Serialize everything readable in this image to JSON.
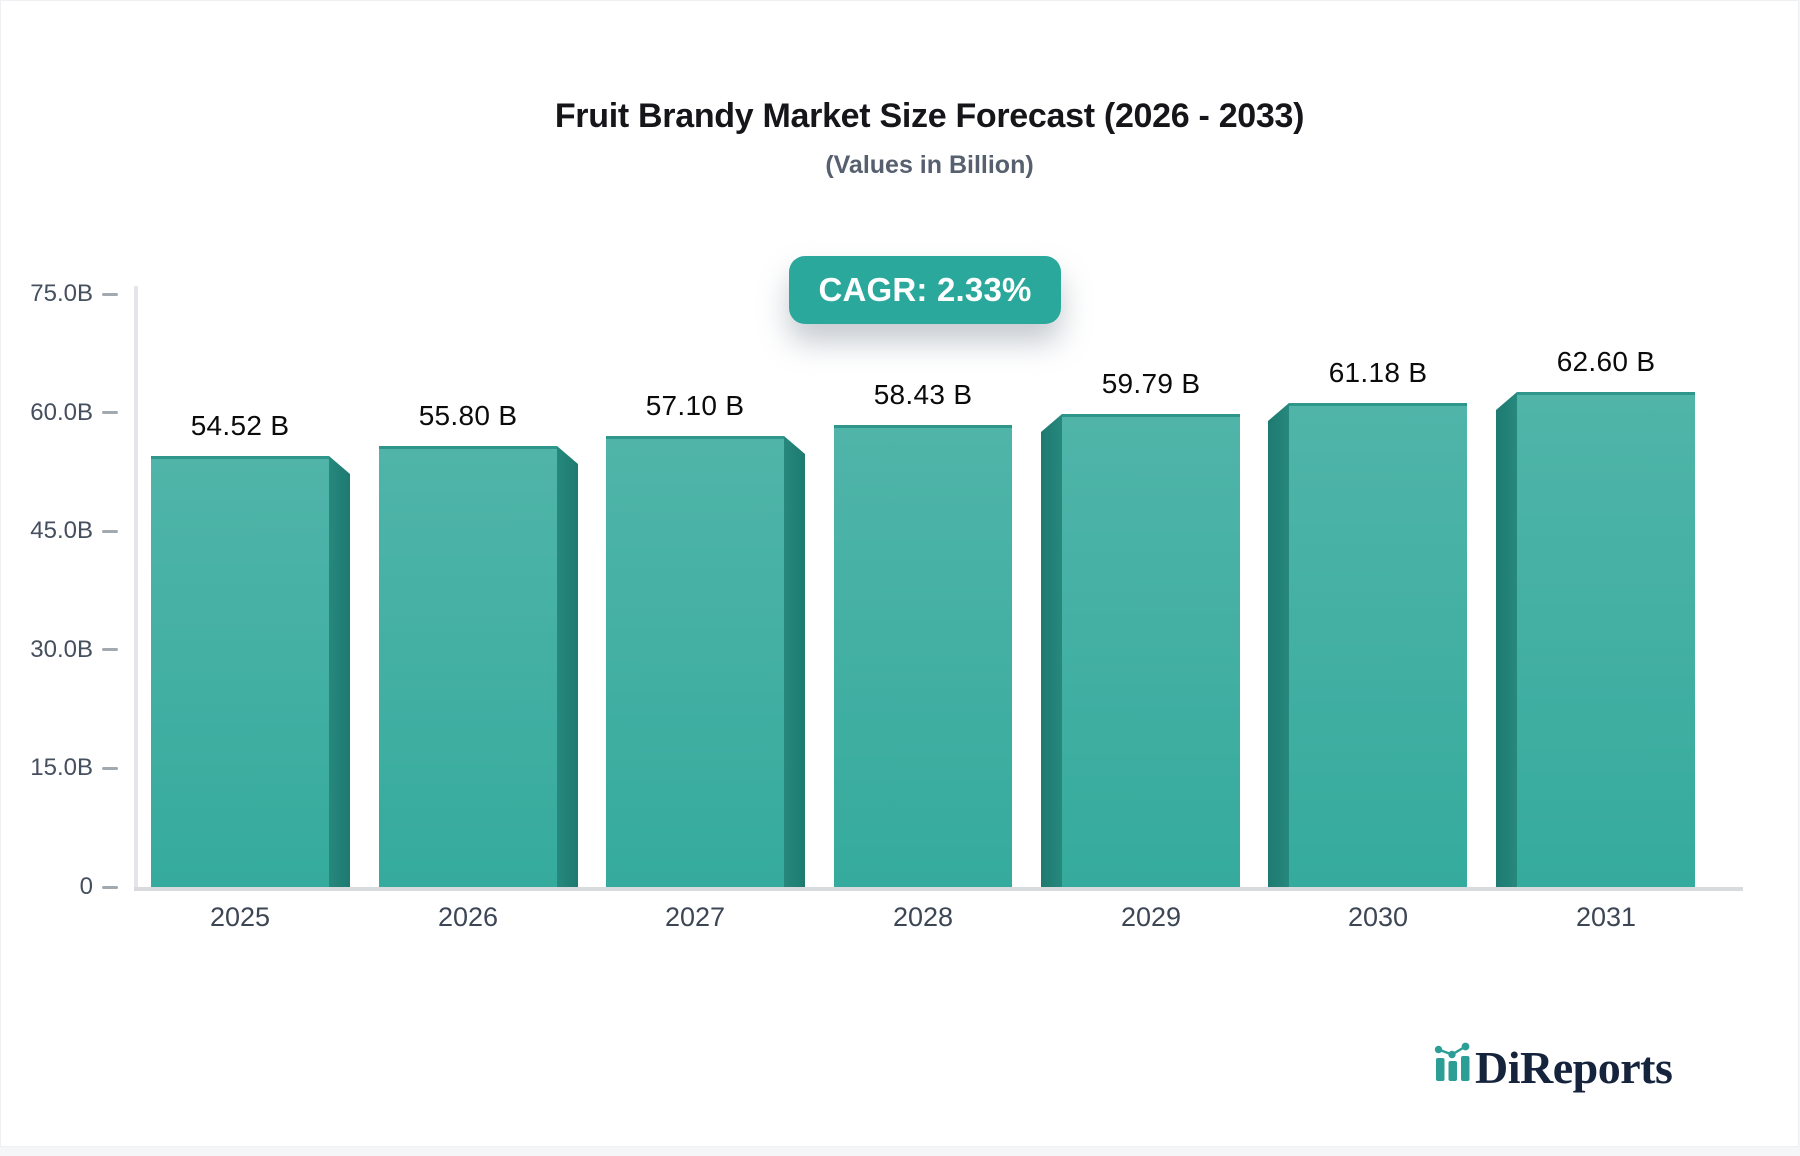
{
  "header": {
    "title": "Fruit Brandy Market Size Forecast (2026 - 2033)",
    "subtitle": "(Values in Billion)",
    "cagr_badge_label": "CAGR: 2.33%"
  },
  "chart_data": {
    "type": "bar",
    "title": "Fruit Brandy Market Size Forecast (2026 - 2033)",
    "subtitle": "(Values in Billion)",
    "cagr_percent": 2.33,
    "unit": "Billion",
    "categories": [
      "2025",
      "2026",
      "2027",
      "2028",
      "2029",
      "2030",
      "2031"
    ],
    "values": [
      54.52,
      55.8,
      57.1,
      58.43,
      59.79,
      61.18,
      62.6
    ],
    "value_labels": [
      "54.52 B",
      "55.80 B",
      "57.10 B",
      "58.43 B",
      "59.79 B",
      "61.18 B",
      "62.60 B"
    ],
    "y_ticks": [
      {
        "label": "75.0B",
        "value": 75
      },
      {
        "label": "60.0B",
        "value": 60
      },
      {
        "label": "45.0B",
        "value": 45
      },
      {
        "label": "30.0B",
        "value": 30
      },
      {
        "label": "15.0B",
        "value": 15
      },
      {
        "label": "0",
        "value": 0
      }
    ],
    "ylim": [
      0,
      75
    ],
    "grid": false,
    "legend": "none",
    "bar_style": "3d-extruded",
    "colors": {
      "bar_face_top": "#50b4a9",
      "bar_face_bottom": "#35ab9d",
      "bar_side_dark": "#1f7e74",
      "badge_background": "#2aa89c",
      "axis_line": "#e4e5e9",
      "baseline": "#d8dade"
    }
  },
  "footer": {
    "brand": "DiReports",
    "brand_icon": "mini-bar-line-chart-icon",
    "brand_color": "#16233c",
    "brand_icon_color": "#2d9e96"
  }
}
